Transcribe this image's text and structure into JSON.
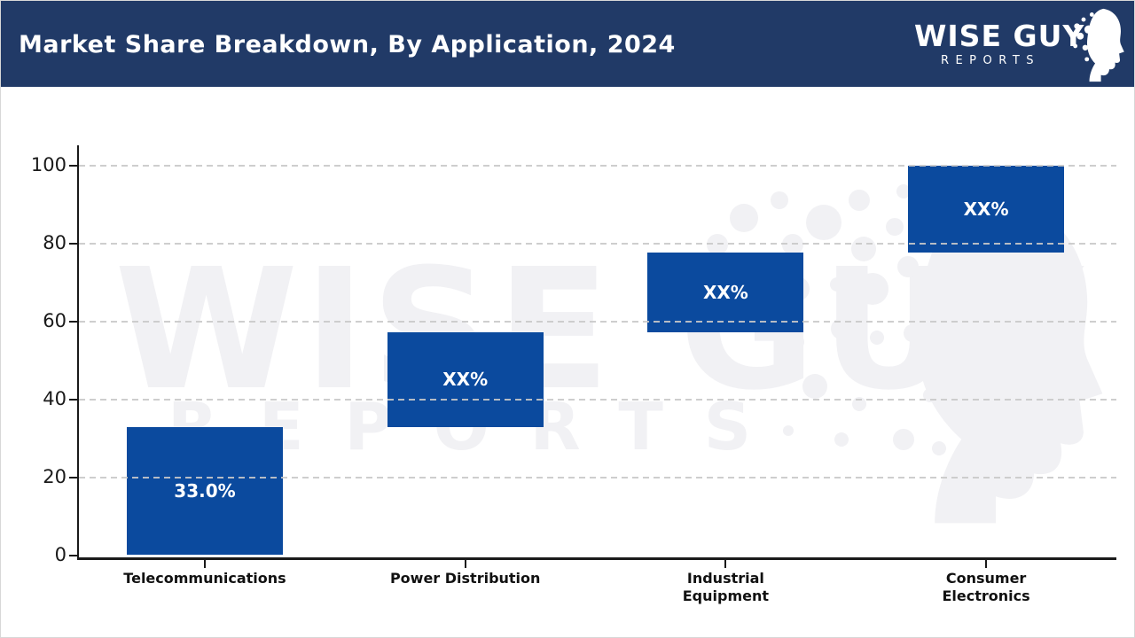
{
  "header": {
    "title": "Market Share Breakdown, By Application, 2024",
    "background_color": "#213a67",
    "logo": {
      "line1": "WISE GUY",
      "line2": "REPORTS"
    }
  },
  "watermark": {
    "line1": "WISE GUY",
    "line2": "REPORTS"
  },
  "chart_data": {
    "type": "bar",
    "subtype": "waterfall",
    "title": "Market Share Breakdown, By Application, 2024",
    "categories": [
      "Telecommunications",
      "Power Distribution",
      "Industrial Equipment",
      "Consumer Electronics"
    ],
    "category_lines": [
      [
        "Telecommunications"
      ],
      [
        "Power Distribution"
      ],
      [
        "Industrial",
        "Equipment"
      ],
      [
        "Consumer",
        "Electronics"
      ]
    ],
    "segments": [
      {
        "category": "Telecommunications",
        "start": 0,
        "end": 33.0,
        "value_label": "33.0%"
      },
      {
        "category": "Power Distribution",
        "start": 33.0,
        "end": 57.3,
        "value_label": "XX%"
      },
      {
        "category": "Industrial Equipment",
        "start": 57.3,
        "end": 77.8,
        "value_label": "XX%"
      },
      {
        "category": "Consumer Electronics",
        "start": 77.8,
        "end": 100,
        "value_label": "XX%"
      }
    ],
    "xlabel": "",
    "ylabel": "",
    "y_ticks": [
      0,
      20,
      40,
      60,
      80,
      100
    ],
    "ylim": [
      0,
      105
    ],
    "grid": "dashed horizontal, drawn over bars",
    "legend": "none",
    "bar_color": "#0b4a9e",
    "axis_color": "#1a1a1a",
    "gridline_color": "#c9c9c9"
  }
}
